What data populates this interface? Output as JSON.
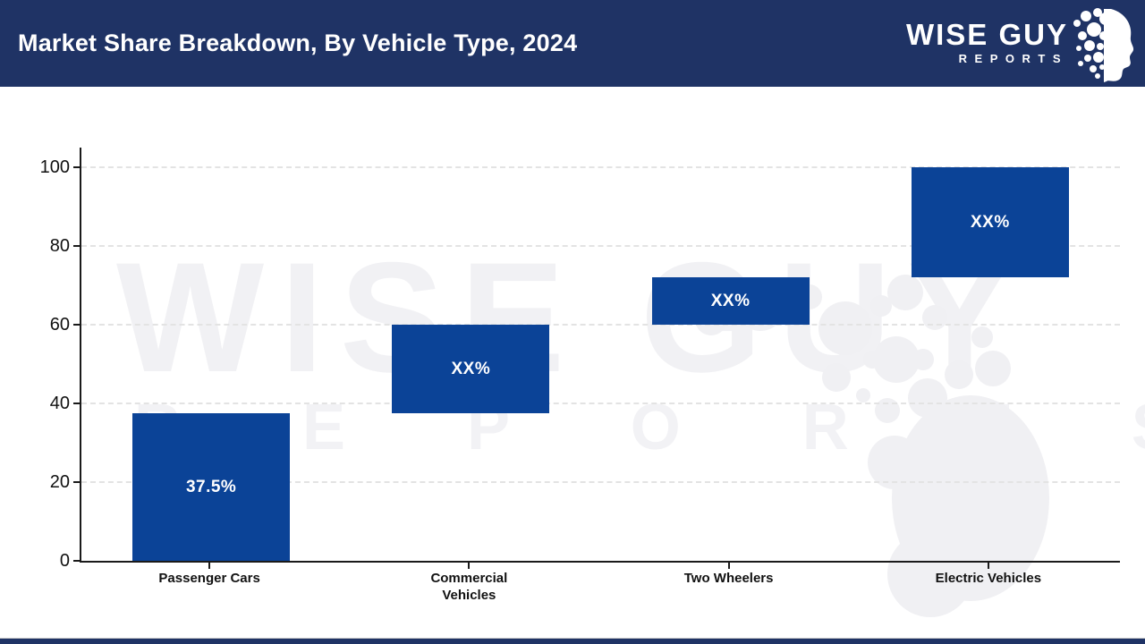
{
  "header": {
    "title": "Market Share Breakdown, By Vehicle Type, 2024",
    "logo": {
      "line1": "WISE GUY",
      "line2": "REPORTS"
    }
  },
  "watermark": {
    "line1": "WISE GUY",
    "line2": "REPORTS"
  },
  "colors": {
    "header_bg": "#1f3365",
    "bar": "#0b4397",
    "bar_label": "#ffffff",
    "grid": "#e3e3e3",
    "axis": "#1a1a1a",
    "watermark": "#f1f1f4"
  },
  "chart_data": {
    "type": "bar",
    "variant": "waterfall",
    "title": "Market Share Breakdown, By Vehicle Type, 2024",
    "categories": [
      "Passenger Cars",
      "Commercial Vehicles",
      "Two Wheelers",
      "Electric Vehicles"
    ],
    "bars": [
      {
        "category": "Passenger Cars",
        "start": 0,
        "end": 37.5,
        "label": "37.5%"
      },
      {
        "category": "Commercial Vehicles",
        "start": 37.5,
        "end": 60,
        "label": "XX%"
      },
      {
        "category": "Two Wheelers",
        "start": 60,
        "end": 72,
        "label": "XX%"
      },
      {
        "category": "Electric Vehicles",
        "start": 72,
        "end": 100,
        "label": "XX%"
      }
    ],
    "yticks": [
      0,
      20,
      40,
      60,
      80,
      100
    ],
    "ylim": [
      0,
      105
    ],
    "xlabel": "",
    "ylabel": "",
    "grid": true,
    "legend": false
  }
}
